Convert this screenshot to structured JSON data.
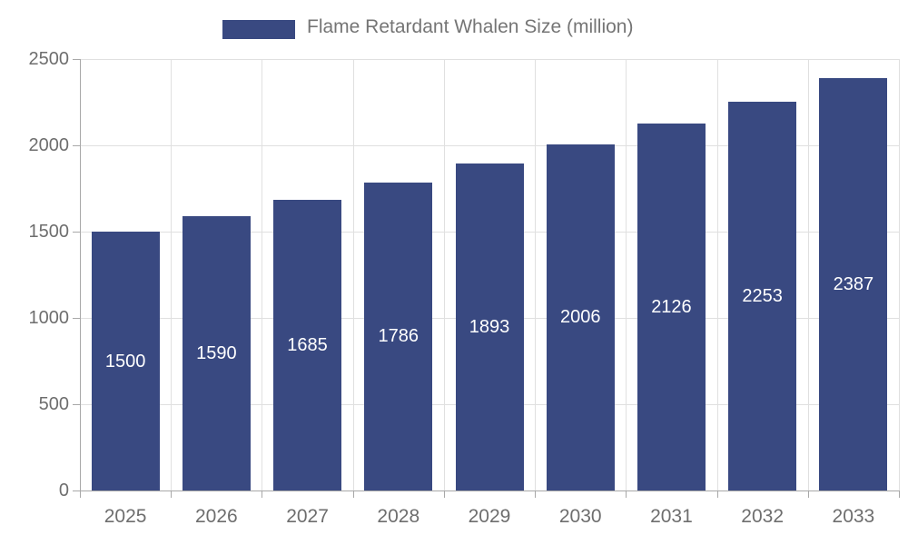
{
  "chart_data": {
    "type": "bar",
    "title": "Flame Retardant Whalen Size (million)",
    "categories": [
      "2025",
      "2026",
      "2027",
      "2028",
      "2029",
      "2030",
      "2031",
      "2032",
      "2033"
    ],
    "values": [
      1500,
      1590,
      1685,
      1786,
      1893,
      2006,
      2126,
      2253,
      2387
    ],
    "xlabel": "",
    "ylabel": "",
    "ylim": [
      0,
      2500
    ],
    "yticks": [
      0,
      500,
      1000,
      1500,
      2000,
      2500
    ],
    "grid": true,
    "legend_position": "top-center",
    "bar_color": "#394981",
    "value_label_color": "#ffffff",
    "axis_text_color": "#6e6e6e",
    "legend_text_color": "#757575"
  }
}
